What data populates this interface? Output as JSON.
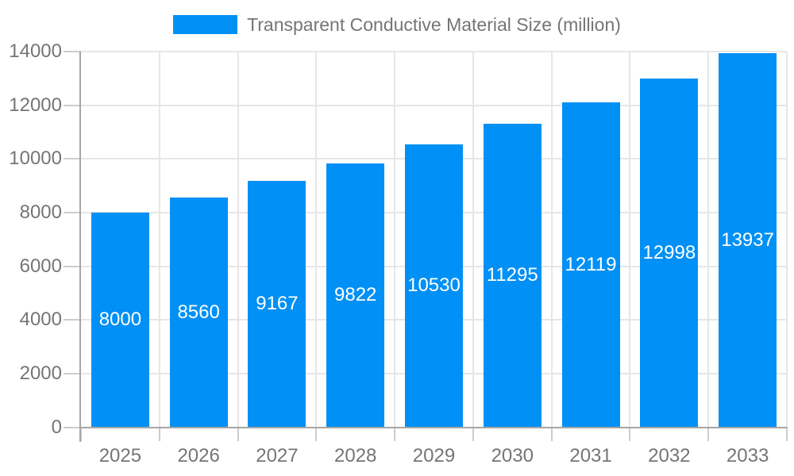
{
  "legend": {
    "label": "Transparent Conductive Material Size (million)"
  },
  "colors": {
    "bar": "#0190F5",
    "grid": "#E6E6E6",
    "axis": "#A6A6A6",
    "tick": "#CCCCCC",
    "text": "#757575",
    "value_label": "#FFFFFF",
    "background": "#FFFFFF"
  },
  "chart_data": {
    "type": "bar",
    "title": "Transparent Conductive Material Size (million)",
    "series_name": "Transparent Conductive Material Size (million)",
    "categories": [
      "2025",
      "2026",
      "2027",
      "2028",
      "2029",
      "2030",
      "2031",
      "2032",
      "2033"
    ],
    "values": [
      8000,
      8560,
      9167,
      9822,
      10530,
      11295,
      12119,
      12998,
      13937
    ],
    "value_labels_shown": [
      "8000",
      "8560",
      "9167",
      "9822",
      "10530",
      "11295",
      "12119",
      "12998",
      "13937"
    ],
    "xlabel": "",
    "ylabel": "",
    "ylim": [
      0,
      14000
    ],
    "yticks": [
      0,
      2000,
      4000,
      6000,
      8000,
      10000,
      12000,
      14000
    ],
    "grid": true,
    "legend_position": "top-center",
    "value_label_position": "inside-middle"
  }
}
